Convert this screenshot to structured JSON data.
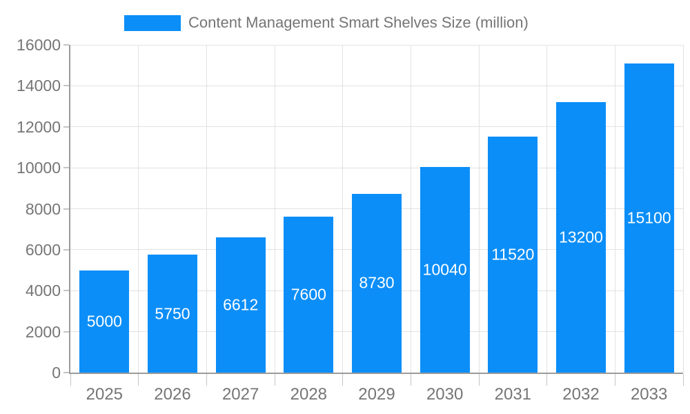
{
  "legend": {
    "label": "Content Management Smart Shelves Size (million)"
  },
  "chart_data": {
    "type": "bar",
    "title": "Content Management Smart Shelves Size (million)",
    "categories": [
      "2025",
      "2026",
      "2027",
      "2028",
      "2029",
      "2030",
      "2031",
      "2032",
      "2033"
    ],
    "values": [
      5000,
      5750,
      6612,
      7600,
      8730,
      10040,
      11520,
      13200,
      15100
    ],
    "xlabel": "",
    "ylabel": "",
    "ylim": [
      0,
      16000
    ],
    "yticks": [
      0,
      2000,
      4000,
      6000,
      8000,
      10000,
      12000,
      14000,
      16000
    ],
    "grid": true,
    "legend_position": "top",
    "colors": {
      "bar": "#0b8ef8",
      "bar_value_label": "#ffffff",
      "axis_text": "#757575",
      "axis_line": "#9a9a9a",
      "gridline": "#e2e2e2",
      "tick": "#c4c4c4"
    }
  }
}
